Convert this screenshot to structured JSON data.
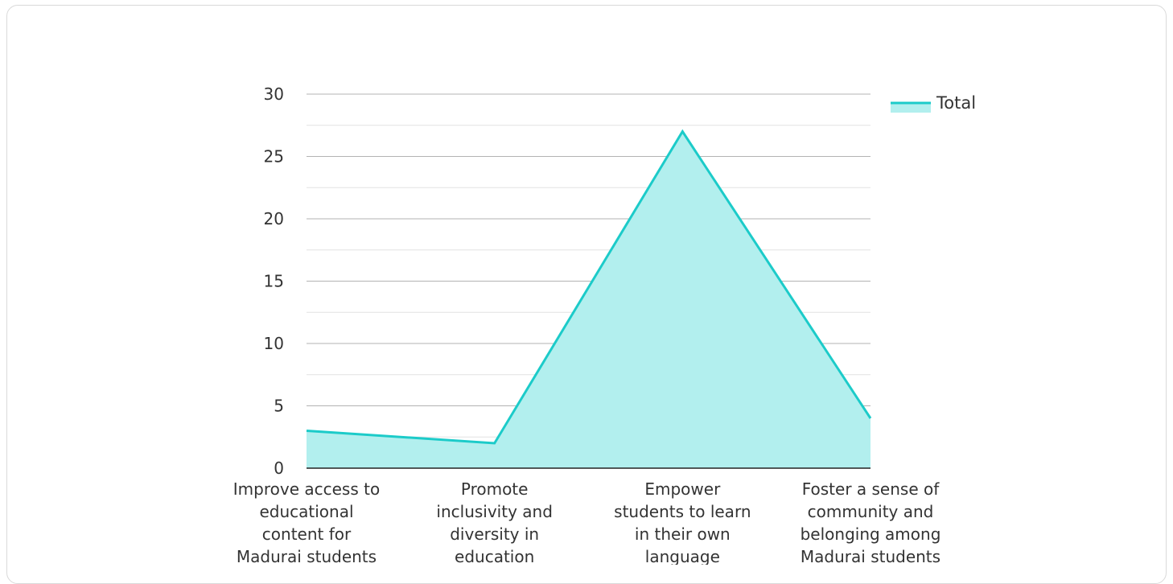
{
  "chart_data": {
    "type": "area",
    "title": "",
    "xlabel": "",
    "ylabel": "",
    "categories": [
      [
        "Improve access to",
        "educational",
        "content for",
        "Madurai students"
      ],
      [
        "Promote",
        "inclusivity and",
        "diversity in",
        "education"
      ],
      [
        "Empower",
        "students to learn",
        "in their own",
        "language"
      ],
      [
        "Foster a sense of",
        "community and",
        "belonging among",
        "Madurai students"
      ]
    ],
    "series": [
      {
        "name": "Total",
        "values": [
          3,
          2,
          27,
          4
        ]
      }
    ],
    "ylim": [
      0,
      30
    ],
    "yticks": [
      "0",
      "5",
      "10",
      "15",
      "20",
      "25",
      "30"
    ],
    "grid": true,
    "legend_position": "top-right",
    "colors": {
      "line": "#1ccbc9",
      "fill": "#b2efee",
      "grid_major": "#b3b3b3",
      "grid_minor": "#e2e2e2",
      "axis": "#222222"
    }
  }
}
